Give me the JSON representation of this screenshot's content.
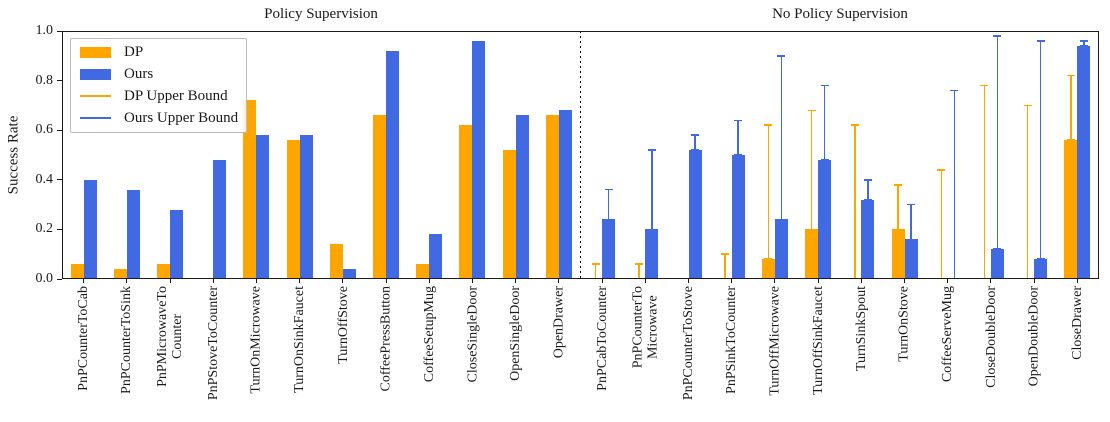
{
  "chart_data": {
    "type": "bar",
    "ylabel": "Success Rate",
    "ylim": [
      0,
      1.0
    ],
    "yticks": [
      0.0,
      0.2,
      0.4,
      0.6,
      0.8,
      1.0
    ],
    "grid": false,
    "legend_position": "upper-left",
    "colors": {
      "dp": "#FFA500",
      "ours": "#4169E1"
    },
    "legend": [
      {
        "label": "DP",
        "swatch": "patch",
        "series": "dp"
      },
      {
        "label": "Ours",
        "swatch": "patch",
        "series": "ours"
      },
      {
        "label": "DP Upper Bound",
        "swatch": "line",
        "series": "dp"
      },
      {
        "label": "Ours Upper Bound",
        "swatch": "line",
        "series": "ours"
      }
    ],
    "sections": [
      {
        "title": "Policy Supervision",
        "tasks": [
          {
            "label": "PnPCounterToCab",
            "dp": 0.06,
            "ours": 0.4
          },
          {
            "label": "PnPCounterToSink",
            "dp": 0.04,
            "ours": 0.36
          },
          {
            "label": "PnPMicrowaveTo\nCounter",
            "dp": 0.06,
            "ours": 0.28
          },
          {
            "label": "PnPStoveToCounter",
            "dp": 0.0,
            "ours": 0.48
          },
          {
            "label": "TurnOnMicrowave",
            "dp": 0.72,
            "ours": 0.58
          },
          {
            "label": "TurnOnSinkFaucet",
            "dp": 0.56,
            "ours": 0.58
          },
          {
            "label": "TurnOffStove",
            "dp": 0.14,
            "ours": 0.04
          },
          {
            "label": "CoffeePressButton",
            "dp": 0.66,
            "ours": 0.92
          },
          {
            "label": "CoffeeSetupMug",
            "dp": 0.06,
            "ours": 0.18
          },
          {
            "label": "CloseSingleDoor",
            "dp": 0.62,
            "ours": 0.96
          },
          {
            "label": "OpenSingleDoor",
            "dp": 0.52,
            "ours": 0.66
          },
          {
            "label": "OpenDrawer",
            "dp": 0.66,
            "ours": 0.68
          }
        ]
      },
      {
        "title": "No Policy Supervision",
        "tasks": [
          {
            "label": "PnPCabToCounter",
            "dp": 0.0,
            "dp_ub": 0.06,
            "ours": 0.24,
            "ours_ub": 0.36
          },
          {
            "label": "PnPCounterTo\nMicrowave",
            "dp": 0.0,
            "dp_ub": 0.06,
            "ours": 0.2,
            "ours_ub": 0.52
          },
          {
            "label": "PnPCounterToStove",
            "dp": 0.0,
            "dp_ub": 0.0,
            "ours": 0.52,
            "ours_ub": 0.58
          },
          {
            "label": "PnPSinkToCounter",
            "dp": 0.0,
            "dp_ub": 0.1,
            "ours": 0.5,
            "ours_ub": 0.64
          },
          {
            "label": "TurnOffMicrowave",
            "dp": 0.08,
            "dp_ub": 0.62,
            "ours": 0.24,
            "ours_ub": 0.9
          },
          {
            "label": "TurnOffSinkFaucet",
            "dp": 0.2,
            "dp_ub": 0.68,
            "ours": 0.48,
            "ours_ub": 0.78
          },
          {
            "label": "TurnSinkSpout",
            "dp": 0.0,
            "dp_ub": 0.62,
            "ours": 0.32,
            "ours_ub": 0.4
          },
          {
            "label": "TurnOnStove",
            "dp": 0.2,
            "dp_ub": 0.38,
            "ours": 0.16,
            "ours_ub": 0.3
          },
          {
            "label": "CoffeeServeMug",
            "dp": 0.0,
            "dp_ub": 0.44,
            "ours": 0.0,
            "ours_ub": 0.76
          },
          {
            "label": "CloseDoubleDoor",
            "dp": 0.0,
            "dp_ub": 0.78,
            "ours": 0.12,
            "ours_ub": 0.98
          },
          {
            "label": "OpenDoubleDoor",
            "dp": 0.0,
            "dp_ub": 0.7,
            "ours": 0.08,
            "ours_ub": 0.96
          },
          {
            "label": "CloseDrawer",
            "dp": 0.56,
            "dp_ub": 0.82,
            "ours": 0.94,
            "ours_ub": 0.96
          }
        ]
      }
    ]
  }
}
